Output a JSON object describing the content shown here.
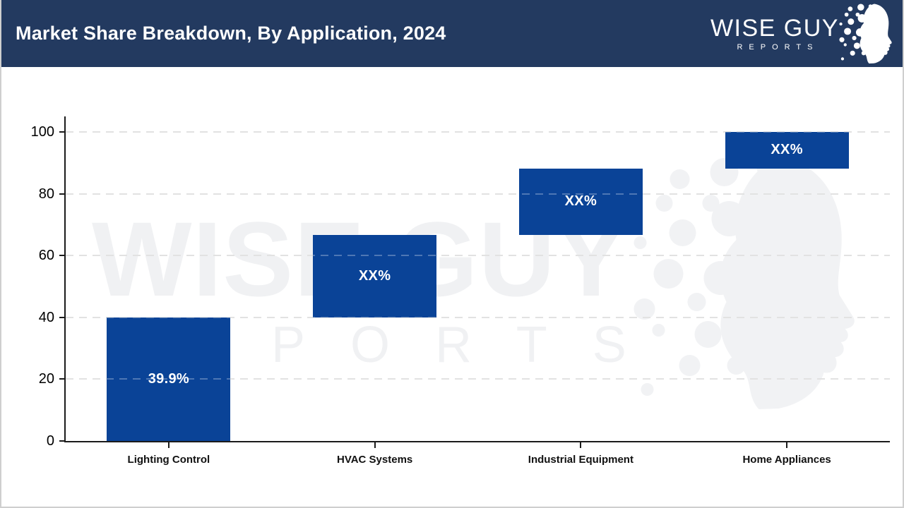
{
  "header": {
    "title": "Market Share Breakdown, By Application, 2024",
    "logo": {
      "line1": "WISE GUY",
      "line2": "REPORTS"
    }
  },
  "watermark": {
    "line1": "WISE GUY",
    "line2": "REPORTS"
  },
  "colors": {
    "header_bg": "#233a60",
    "watermark": "#f0f1f3",
    "page_border": "#cfcfcf"
  },
  "chart_data": {
    "type": "bar",
    "subtype": "waterfall-breakdown",
    "title": "Market Share Breakdown, By Application, 2024",
    "xlabel": "",
    "ylabel": "",
    "categories": [
      "Lighting Control",
      "HVAC Systems",
      "Industrial Equipment",
      "Home Appliances"
    ],
    "segments": [
      {
        "category": "Lighting Control",
        "start": 0,
        "end": 39.9,
        "label": "39.9%"
      },
      {
        "category": "HVAC Systems",
        "start": 39.9,
        "end": 66.6,
        "label": "XX%"
      },
      {
        "category": "Industrial Equipment",
        "start": 66.6,
        "end": 88.2,
        "label": "XX%"
      },
      {
        "category": "Home Appliances",
        "start": 88.2,
        "end": 100,
        "label": "XX%"
      }
    ],
    "yticks": [
      0,
      20,
      40,
      60,
      80,
      100
    ],
    "ylim": [
      0,
      105
    ],
    "grid": "dashed-horizontal",
    "legend": "none",
    "bar_color": "#0a4397",
    "bar_label_color": "#ffffff",
    "grid_color": "#d7d7d7"
  }
}
